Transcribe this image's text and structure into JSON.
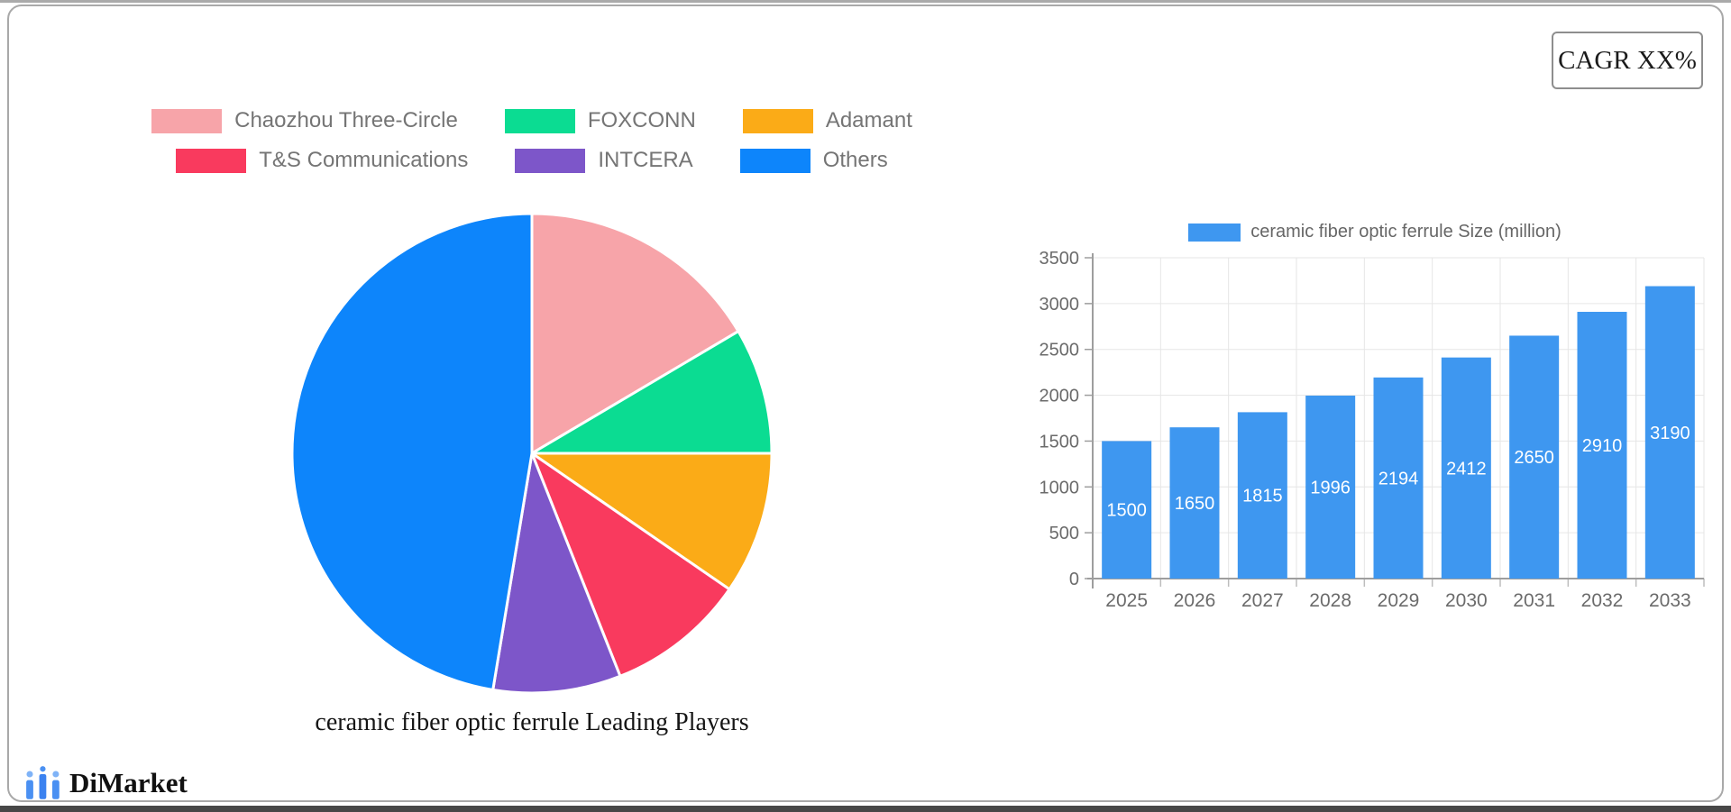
{
  "frame": {
    "cagr_label": "CAGR XX%"
  },
  "branding": {
    "logo_icon": "bar-chart-logo-icon",
    "logo_text": "DiMarket"
  },
  "chart_data": [
    {
      "type": "pie",
      "title": "ceramic fiber optic ferrule Leading Players",
      "legend_position": "top",
      "legend_rows": [
        [
          0,
          1,
          2
        ],
        [
          3,
          4,
          5
        ]
      ],
      "start_angle_deg": 0,
      "direction": "clockwise",
      "series": [
        {
          "name": "Chaozhou Three-Circle",
          "value": 16.5,
          "color": "#f7a4a9"
        },
        {
          "name": "FOXCONN",
          "value": 8.5,
          "color": "#0bdc92"
        },
        {
          "name": "Adamant",
          "value": 9.6,
          "color": "#fbab17"
        },
        {
          "name": "T&S Communications",
          "value": 9.4,
          "color": "#f93a5e"
        },
        {
          "name": "INTCERA",
          "value": 8.6,
          "color": "#7d56c9"
        },
        {
          "name": "Others",
          "value": 47.4,
          "color": "#0d85fb"
        }
      ]
    },
    {
      "type": "bar",
      "legend": "ceramic fiber optic ferrule Size (million)",
      "categories": [
        "2025",
        "2026",
        "2027",
        "2028",
        "2029",
        "2030",
        "2031",
        "2032",
        "2033"
      ],
      "values": [
        1500,
        1650,
        1815,
        1996,
        2194,
        2412,
        2650,
        2910,
        3190
      ],
      "bar_color": "#3e97f0",
      "value_label_color": "#ffffff",
      "axis_text_color": "#6b6b6b",
      "grid_color": "#e6e6e6",
      "axis_line_color": "#9e9e9e",
      "ylim": [
        0,
        3500
      ],
      "ytick_step": 500,
      "grid": true,
      "legend_position": "top",
      "value_labels": "inside-center-white"
    }
  ]
}
